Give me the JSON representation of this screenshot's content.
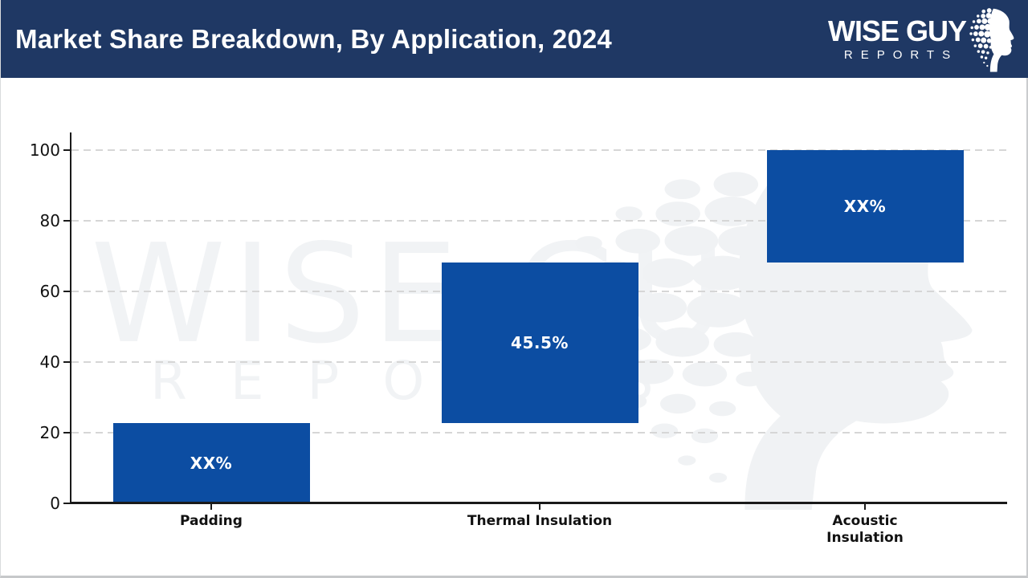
{
  "header": {
    "title": "Market Share Breakdown, By Application, 2024",
    "logo": {
      "line1": "WISE GUY",
      "line2": "REPORTS"
    },
    "bg_color": "#1F3864"
  },
  "watermark": {
    "line1": "WISE GUY",
    "line2": "REPORTS"
  },
  "chart_data": {
    "type": "bar",
    "subtype": "waterfall",
    "title": "Market Share Breakdown, By Application, 2024",
    "categories": [
      "Padding",
      "Thermal Insulation",
      "Acoustic Insulation"
    ],
    "segments": [
      {
        "category": "Padding",
        "start": 0,
        "end": 22.7,
        "label": "XX%"
      },
      {
        "category": "Thermal Insulation",
        "start": 22.7,
        "end": 68.2,
        "label": "45.5%"
      },
      {
        "category": "Acoustic Insulation",
        "start": 68.2,
        "end": 100,
        "label": "XX%"
      }
    ],
    "ylim": [
      0,
      100
    ],
    "yticks": [
      0,
      20,
      40,
      60,
      80,
      100
    ],
    "xlabel": "",
    "ylabel": "",
    "grid": "horizontal-dashed",
    "legend": "none",
    "bar_color": "#0C4DA2",
    "bar_label_color": "#FFFFFF",
    "axis_color": "#1A1A1A",
    "grid_color": "#D6D6D6"
  }
}
